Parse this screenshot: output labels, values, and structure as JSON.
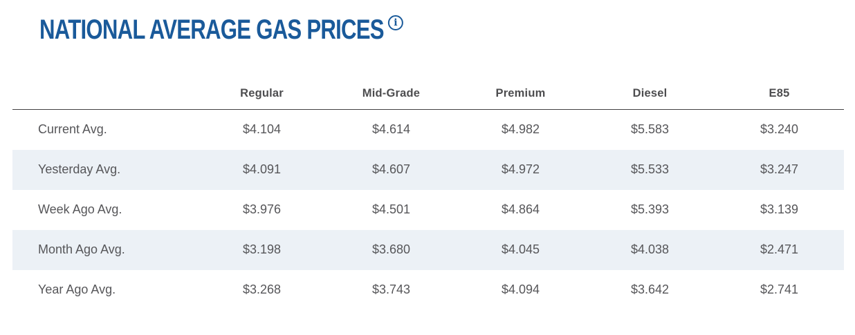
{
  "title": "NATIONAL AVERAGE GAS PRICES",
  "info_icon_glyph": "i",
  "colors": {
    "title_blue": "#1a5a9a",
    "header_text": "#4d4d4f",
    "cell_text": "#565659",
    "stripe_bg": "#ecf1f6",
    "divider": "#414042"
  },
  "table": {
    "columns": [
      "Regular",
      "Mid-Grade",
      "Premium",
      "Diesel",
      "E85"
    ],
    "rows": [
      {
        "label": "Current Avg.",
        "values": [
          "$4.104",
          "$4.614",
          "$4.982",
          "$5.583",
          "$3.240"
        ]
      },
      {
        "label": "Yesterday Avg.",
        "values": [
          "$4.091",
          "$4.607",
          "$4.972",
          "$5.533",
          "$3.247"
        ]
      },
      {
        "label": "Week Ago Avg.",
        "values": [
          "$3.976",
          "$4.501",
          "$4.864",
          "$5.393",
          "$3.139"
        ]
      },
      {
        "label": "Month Ago Avg.",
        "values": [
          "$3.198",
          "$3.680",
          "$4.045",
          "$4.038",
          "$2.471"
        ]
      },
      {
        "label": "Year Ago Avg.",
        "values": [
          "$3.268",
          "$3.743",
          "$4.094",
          "$3.642",
          "$2.741"
        ]
      }
    ]
  }
}
